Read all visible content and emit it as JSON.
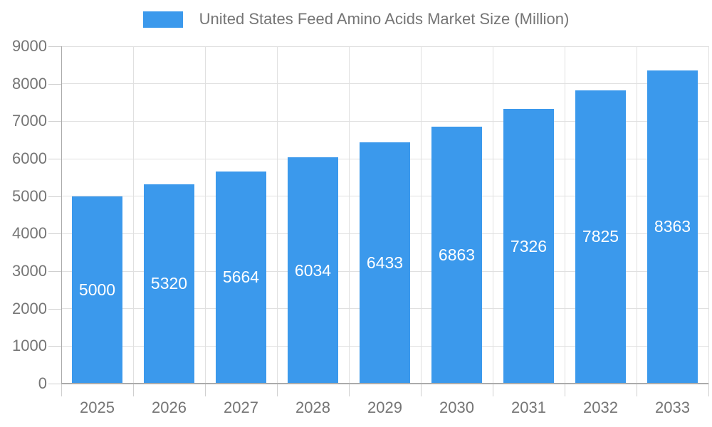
{
  "chart_data": {
    "type": "bar",
    "title": "United States Feed Amino Acids Market Size (Million)",
    "categories": [
      "2025",
      "2026",
      "2027",
      "2028",
      "2029",
      "2030",
      "2031",
      "2032",
      "2033"
    ],
    "values": [
      5000,
      5320,
      5664,
      6034,
      6433,
      6863,
      7326,
      7825,
      8363
    ],
    "value_labels": [
      "5000",
      "5320",
      "5664",
      "6034",
      "6433",
      "6863",
      "7326",
      "7825",
      "8363"
    ],
    "xlabel": "",
    "ylabel": "",
    "ylim": [
      0,
      9000
    ],
    "ytick_interval": 1000,
    "yticks": [
      "0",
      "1000",
      "2000",
      "3000",
      "4000",
      "5000",
      "6000",
      "7000",
      "8000",
      "9000"
    ],
    "grid": true,
    "legend_position": "top",
    "colors": {
      "bar": "#3B99EC",
      "value_label": "#ffffff",
      "axis_text": "#757575",
      "title_text": "#757575",
      "gridline": "#e0e0e0",
      "tick": "#cfcfcf",
      "axis_line": "#ababab",
      "background": "#ffffff"
    }
  }
}
